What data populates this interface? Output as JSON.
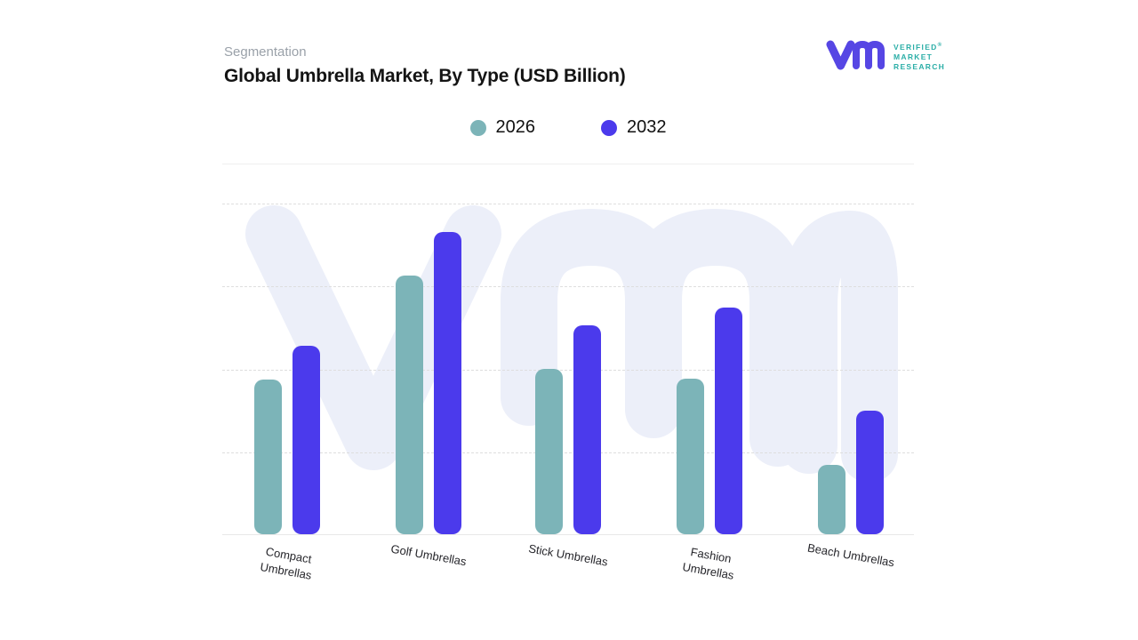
{
  "header": {
    "eyebrow": "Segmentation",
    "title": "Global Umbrella Market, By Type (USD Billion)"
  },
  "logo": {
    "mark": "vmr-monogram",
    "line1": "VERIFIED",
    "line2": "MARKET",
    "line3": "RESEARCH",
    "registered_symbol": "®",
    "mark_color": "#5646E4",
    "text_color": "#2BAEA7"
  },
  "legend": {
    "items": [
      {
        "label": "2026",
        "color": "#7CB4B8"
      },
      {
        "label": "2032",
        "color": "#4B3AEC"
      }
    ]
  },
  "chart_data": {
    "type": "bar",
    "title": "Global Umbrella Market, By Type (USD Billion)",
    "categories": [
      "Compact Umbrellas",
      "Golf Umbrellas",
      "Stick Umbrellas",
      "Fashion Umbrellas",
      "Beach Umbrellas"
    ],
    "category_lines": [
      [
        "Compact",
        "Umbrellas"
      ],
      [
        "Golf Umbrellas"
      ],
      [
        "Stick Umbrellas"
      ],
      [
        "Fashion",
        "Umbrellas"
      ],
      [
        "Beach Umbrellas"
      ]
    ],
    "series": [
      {
        "name": "2026",
        "color": "#7CB4B8",
        "values": [
          1.87,
          3.12,
          1.99,
          1.88,
          0.84
        ]
      },
      {
        "name": "2032",
        "color": "#4B3AEC",
        "values": [
          2.27,
          3.65,
          2.52,
          2.73,
          1.49
        ]
      }
    ],
    "xlabel": "",
    "ylabel": "",
    "ylim": [
      0,
      4
    ],
    "y_tick_labels_visible": false,
    "units_note": "y-axis unlabeled; values estimated in gridline units (1 unit per dotted gridline step)",
    "gridlines": "horizontal-dotted",
    "legend_position": "top-center",
    "watermark": "vmr-monogram",
    "watermark_color": "#ECEFF9"
  }
}
